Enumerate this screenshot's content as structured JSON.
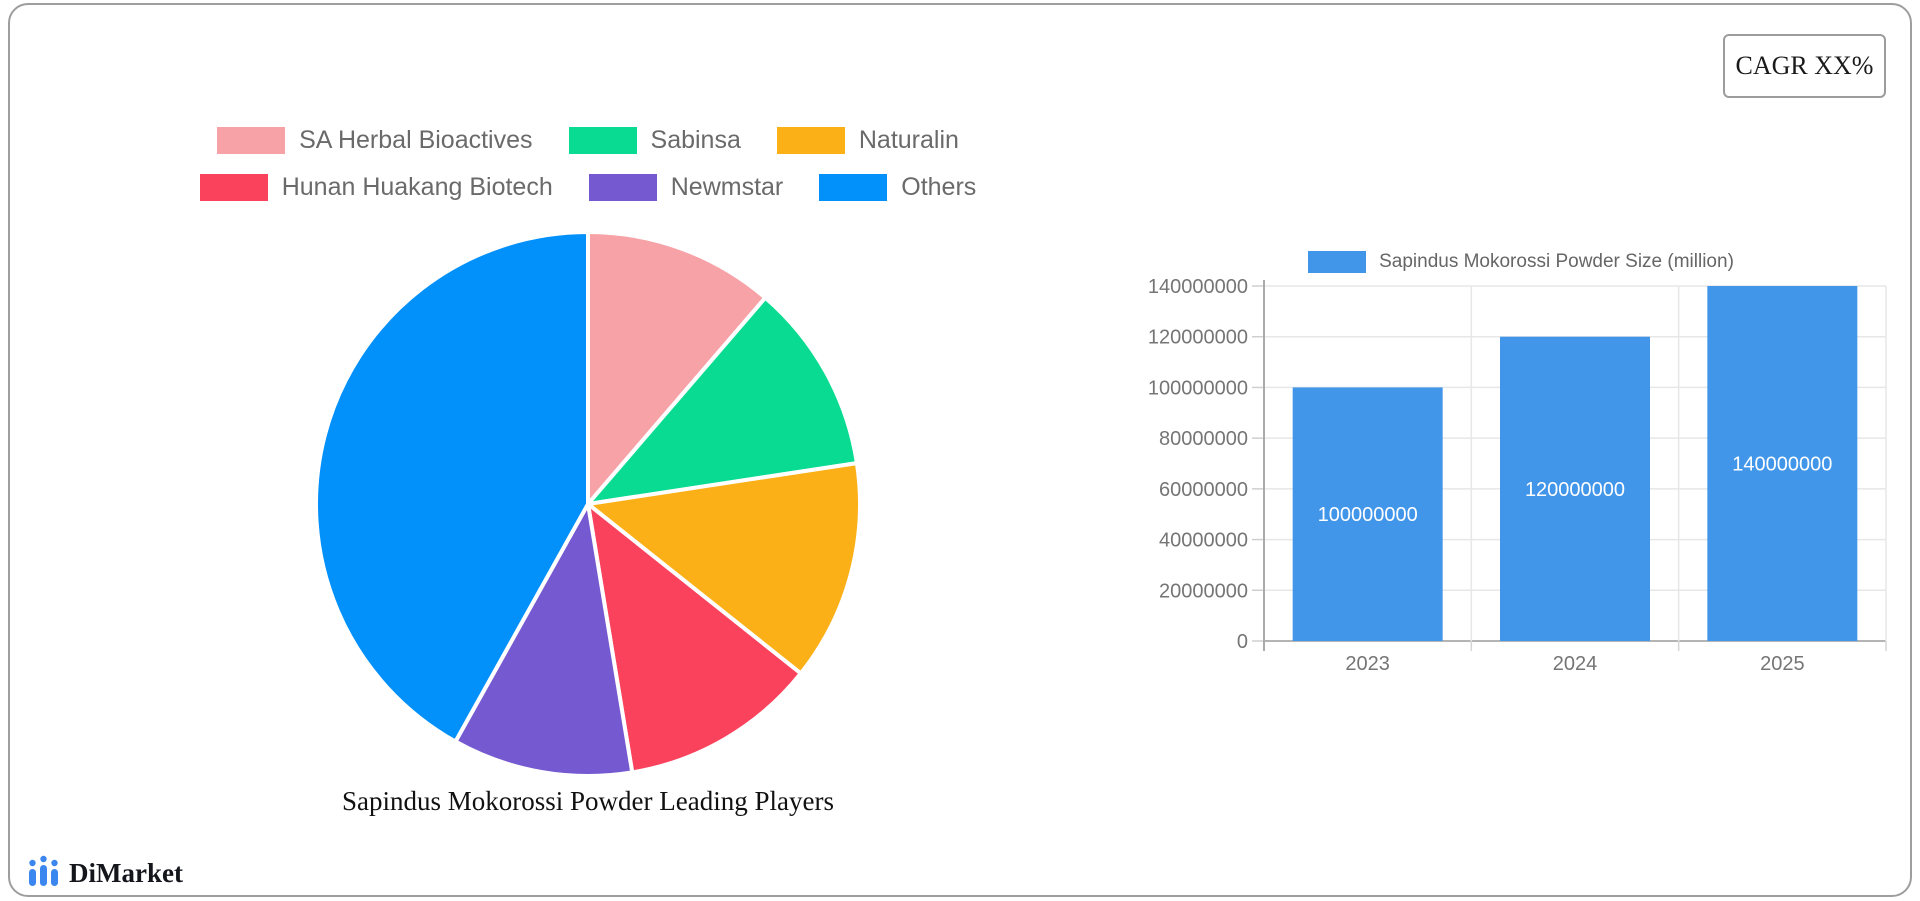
{
  "page": {
    "cagr_label": "CAGR XX%",
    "logo_text": "DiMarket",
    "card_border_color": "#9E9E9E",
    "accent_blue": "#3C86F0"
  },
  "chart_data": [
    {
      "type": "pie",
      "title": "Sapindus Mokorossi Powder Leading Players",
      "legend_position": "top",
      "slices": [
        {
          "label": "SA Herbal Bioactives",
          "color": "#F7A2A7",
          "percent": 11.3
        },
        {
          "label": "Sabinsa",
          "color": "#0ADB92",
          "percent": 11.3
        },
        {
          "label": "Naturalin",
          "color": "#FCB017",
          "percent": 13.1
        },
        {
          "label": "Hunan Huakang Biotech",
          "color": "#FA425C",
          "percent": 11.7
        },
        {
          "label": "Newmstar",
          "color": "#7559D1",
          "percent": 10.7
        },
        {
          "label": "Others",
          "color": "#0290FB",
          "percent": 41.9
        }
      ]
    },
    {
      "type": "bar",
      "series_label": "Sapindus Mokorossi Powder Size (million)",
      "categories": [
        "2023",
        "2024",
        "2025"
      ],
      "values": [
        100000000,
        120000000,
        140000000
      ],
      "value_labels": [
        "100000000",
        "120000000",
        "140000000"
      ],
      "bar_color": "#4196EA",
      "ylim": [
        0,
        140000000
      ],
      "ytick_step": 20000000,
      "yticks": [
        "0",
        "20000000",
        "40000000",
        "60000000",
        "80000000",
        "100000000",
        "120000000",
        "140000000"
      ],
      "grid": true,
      "legend_position": "top",
      "axis_text_color": "#757575"
    }
  ]
}
